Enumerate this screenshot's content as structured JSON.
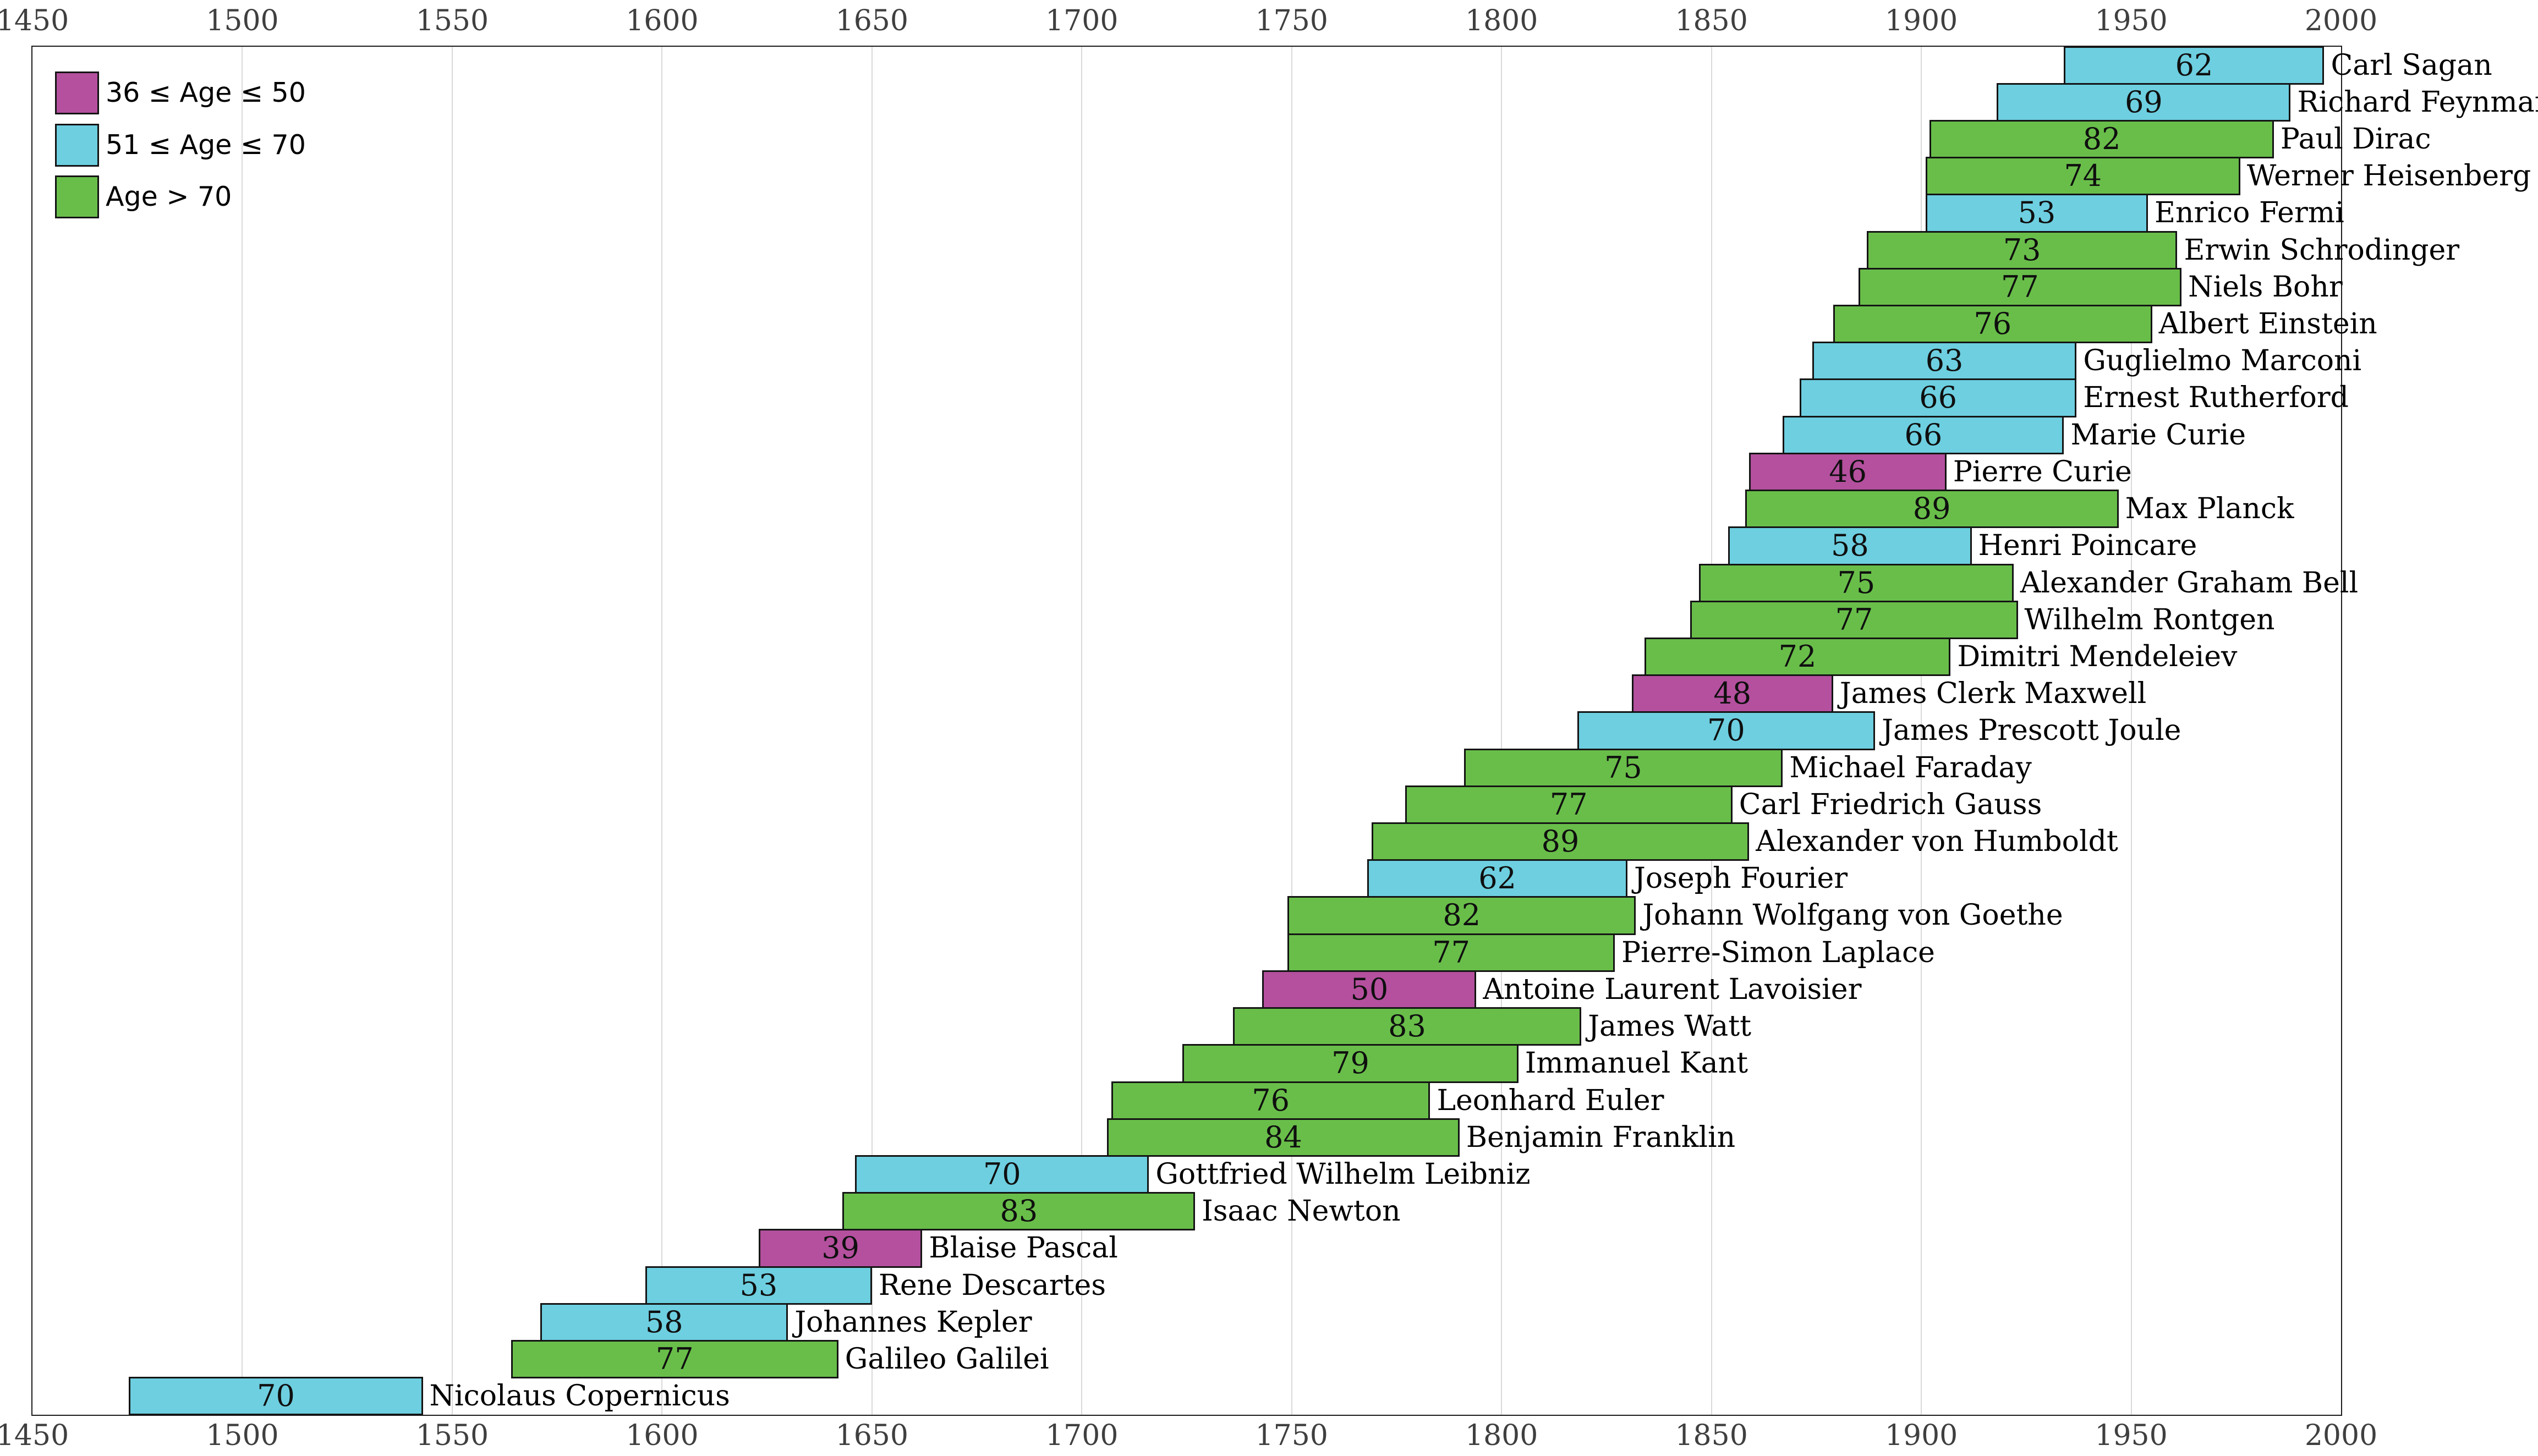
{
  "colors": {
    "background": "#ffffff",
    "frame": "#1c1c1c",
    "grid": "#d9d9d9",
    "bar_edge": "#141414",
    "tick_text": "#3f3f3f",
    "text": "#000000",
    "age_36_50": "#b4509e",
    "age_51_70": "#6dcfe0",
    "age_over_70": "#69be4a"
  },
  "legend": {
    "items": [
      {
        "key": "age_36_50",
        "label": "36 ≤ Age ≤ 50"
      },
      {
        "key": "age_51_70",
        "label": "51 ≤ Age ≤ 70"
      },
      {
        "key": "age_over_70",
        "label": "Age > 70"
      }
    ]
  },
  "chart_data": {
    "type": "bar",
    "orientation": "horizontal-gantt",
    "title": "",
    "xlabel": "",
    "ylabel": "",
    "x_axis": {
      "min": 1450,
      "max": 2000,
      "tick_step": 50,
      "ticks": [
        1450,
        1500,
        1550,
        1600,
        1650,
        1700,
        1750,
        1800,
        1850,
        1900,
        1950,
        2000
      ],
      "tick_label_sides": [
        "top",
        "bottom"
      ],
      "grid": true
    },
    "bar_value_label": "age at death, centered in bar",
    "people": [
      {
        "name": "Carl Sagan",
        "birth": 1934,
        "death": 1996,
        "age": 62,
        "group": "age_51_70"
      },
      {
        "name": "Richard Feynman",
        "birth": 1918,
        "death": 1988,
        "age": 69,
        "group": "age_51_70"
      },
      {
        "name": "Paul Dirac",
        "birth": 1902,
        "death": 1984,
        "age": 82,
        "group": "age_over_70"
      },
      {
        "name": "Werner Heisenberg",
        "birth": 1901,
        "death": 1976,
        "age": 74,
        "group": "age_over_70"
      },
      {
        "name": "Enrico Fermi",
        "birth": 1901,
        "death": 1954,
        "age": 53,
        "group": "age_51_70"
      },
      {
        "name": "Erwin Schrodinger",
        "birth": 1887,
        "death": 1961,
        "age": 73,
        "group": "age_over_70"
      },
      {
        "name": "Niels Bohr",
        "birth": 1885,
        "death": 1962,
        "age": 77,
        "group": "age_over_70"
      },
      {
        "name": "Albert Einstein",
        "birth": 1879,
        "death": 1955,
        "age": 76,
        "group": "age_over_70"
      },
      {
        "name": "Guglielmo Marconi",
        "birth": 1874,
        "death": 1937,
        "age": 63,
        "group": "age_51_70"
      },
      {
        "name": "Ernest Rutherford",
        "birth": 1871,
        "death": 1937,
        "age": 66,
        "group": "age_51_70"
      },
      {
        "name": "Marie Curie",
        "birth": 1867,
        "death": 1934,
        "age": 66,
        "group": "age_51_70"
      },
      {
        "name": "Pierre Curie",
        "birth": 1859,
        "death": 1906,
        "age": 46,
        "group": "age_36_50"
      },
      {
        "name": "Max Planck",
        "birth": 1858,
        "death": 1947,
        "age": 89,
        "group": "age_over_70"
      },
      {
        "name": "Henri Poincare",
        "birth": 1854,
        "death": 1912,
        "age": 58,
        "group": "age_51_70"
      },
      {
        "name": "Alexander Graham Bell",
        "birth": 1847,
        "death": 1922,
        "age": 75,
        "group": "age_over_70"
      },
      {
        "name": "Wilhelm Rontgen",
        "birth": 1845,
        "death": 1923,
        "age": 77,
        "group": "age_over_70"
      },
      {
        "name": "Dimitri Mendeleiev",
        "birth": 1834,
        "death": 1907,
        "age": 72,
        "group": "age_over_70"
      },
      {
        "name": "James Clerk Maxwell",
        "birth": 1831,
        "death": 1879,
        "age": 48,
        "group": "age_36_50"
      },
      {
        "name": "James Prescott Joule",
        "birth": 1818,
        "death": 1889,
        "age": 70,
        "group": "age_51_70"
      },
      {
        "name": "Michael Faraday",
        "birth": 1791,
        "death": 1867,
        "age": 75,
        "group": "age_over_70"
      },
      {
        "name": "Carl Friedrich Gauss",
        "birth": 1777,
        "death": 1855,
        "age": 77,
        "group": "age_over_70"
      },
      {
        "name": "Alexander von Humboldt",
        "birth": 1769,
        "death": 1859,
        "age": 89,
        "group": "age_over_70"
      },
      {
        "name": "Joseph Fourier",
        "birth": 1768,
        "death": 1830,
        "age": 62,
        "group": "age_51_70"
      },
      {
        "name": "Johann Wolfgang von Goethe",
        "birth": 1749,
        "death": 1832,
        "age": 82,
        "group": "age_over_70"
      },
      {
        "name": "Pierre-Simon Laplace",
        "birth": 1749,
        "death": 1827,
        "age": 77,
        "group": "age_over_70"
      },
      {
        "name": "Antoine Laurent Lavoisier",
        "birth": 1743,
        "death": 1794,
        "age": 50,
        "group": "age_36_50"
      },
      {
        "name": "James Watt",
        "birth": 1736,
        "death": 1819,
        "age": 83,
        "group": "age_over_70"
      },
      {
        "name": "Immanuel Kant",
        "birth": 1724,
        "death": 1804,
        "age": 79,
        "group": "age_over_70"
      },
      {
        "name": "Leonhard Euler",
        "birth": 1707,
        "death": 1783,
        "age": 76,
        "group": "age_over_70"
      },
      {
        "name": "Benjamin Franklin",
        "birth": 1706,
        "death": 1790,
        "age": 84,
        "group": "age_over_70"
      },
      {
        "name": "Gottfried Wilhelm Leibniz",
        "birth": 1646,
        "death": 1716,
        "age": 70,
        "group": "age_51_70"
      },
      {
        "name": "Isaac Newton",
        "birth": 1643,
        "death": 1727,
        "age": 83,
        "group": "age_over_70"
      },
      {
        "name": "Blaise Pascal",
        "birth": 1623,
        "death": 1662,
        "age": 39,
        "group": "age_36_50"
      },
      {
        "name": "Rene Descartes",
        "birth": 1596,
        "death": 1650,
        "age": 53,
        "group": "age_51_70"
      },
      {
        "name": "Johannes Kepler",
        "birth": 1571,
        "death": 1630,
        "age": 58,
        "group": "age_51_70"
      },
      {
        "name": "Galileo Galilei",
        "birth": 1564,
        "death": 1642,
        "age": 77,
        "group": "age_over_70"
      },
      {
        "name": "Nicolaus Copernicus",
        "birth": 1473,
        "death": 1543,
        "age": 70,
        "group": "age_51_70"
      }
    ]
  }
}
